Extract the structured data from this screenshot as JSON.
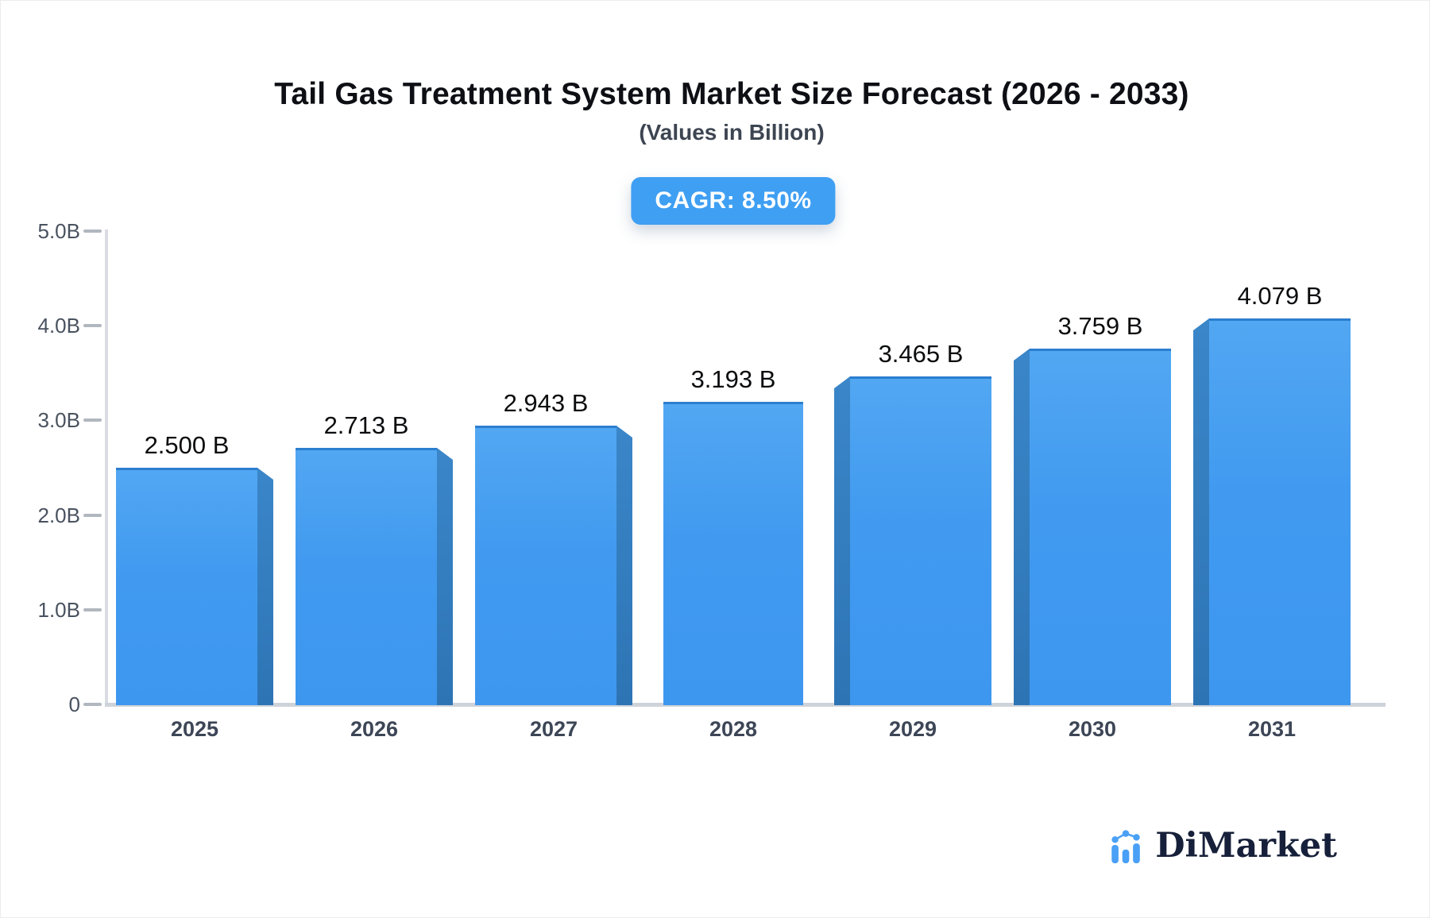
{
  "header": {
    "title": "Tail Gas Treatment System Market Size Forecast (2026 - 2033)",
    "subtitle": "(Values in Billion)"
  },
  "badge": {
    "label": "CAGR: 8.50%",
    "color": "#3f9ff3"
  },
  "chart_data": {
    "type": "bar",
    "title": "Tail Gas Treatment System Market Size Forecast (2026 - 2033)",
    "subtitle": "(Values in Billion)",
    "cagr": "8.50%",
    "categories": [
      "2025",
      "2026",
      "2027",
      "2028",
      "2029",
      "2030",
      "2031"
    ],
    "values": [
      2.5,
      2.713,
      2.943,
      3.193,
      3.465,
      3.759,
      4.079
    ],
    "point_labels": [
      "2.500 B",
      "2.713 B",
      "2.943 B",
      "3.193 B",
      "3.465 B",
      "3.759 B",
      "4.079 B"
    ],
    "unit": "Billion",
    "ylim": [
      0,
      5
    ],
    "yticks": [
      {
        "label": "5.0B",
        "value": 5.0
      },
      {
        "label": "4.0B",
        "value": 4.0
      },
      {
        "label": "3.0B",
        "value": 3.0
      },
      {
        "label": "2.0B",
        "value": 2.0
      },
      {
        "label": "1.0B",
        "value": 1.0
      },
      {
        "label": "0",
        "value": 0.0
      }
    ],
    "grid": false,
    "legend": false,
    "bar_color": "#3f9af0",
    "bar_side_color": "#2e76b6",
    "axis_color": "#ced3da"
  },
  "logo": {
    "text": "DiMarket",
    "icon": "mini-bar-chart-trend-icon",
    "icon_color": "#4aa0f6",
    "text_color": "#17203a"
  }
}
